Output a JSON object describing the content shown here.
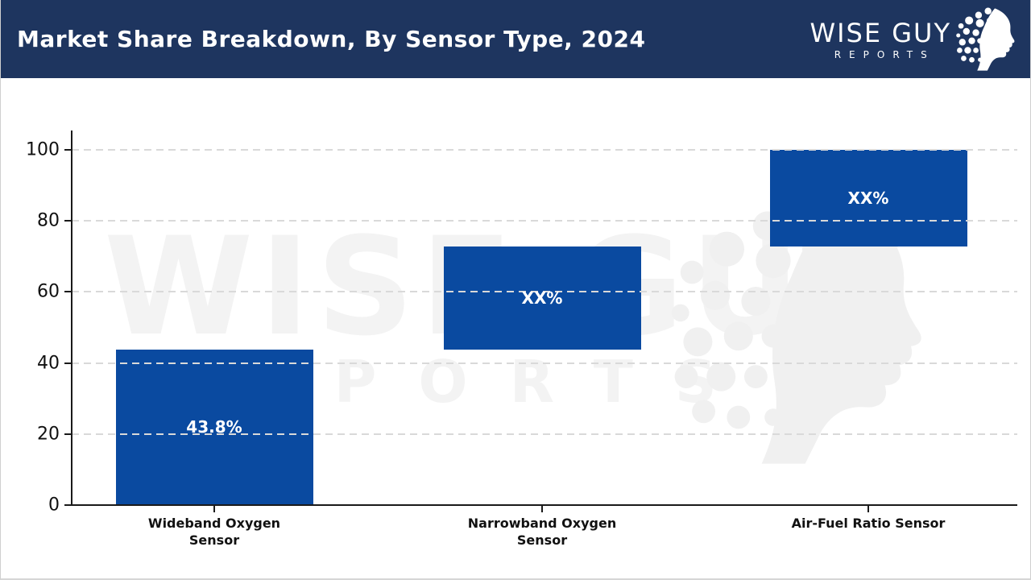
{
  "header": {
    "title": "Market Share Breakdown, By Sensor Type, 2024",
    "logo": {
      "line1": "WISE GUY",
      "line2": "REPORTS"
    }
  },
  "watermark": {
    "line1": "WISE GUY",
    "line2": "REPORTS"
  },
  "colors": {
    "header_bg": "#1e355f",
    "bar": "#0a4aa0",
    "grid": "#d9d9d9",
    "axis": "#1a1a1a",
    "watermark": "#f3f3f3",
    "bar_label": "#ffffff"
  },
  "chart_data": {
    "type": "bar",
    "subtype": "floating-stacked-percentage",
    "title": "Market Share Breakdown, By Sensor Type, 2024",
    "categories": [
      "Wideband Oxygen Sensor",
      "Narrowband Oxygen Sensor",
      "Air-Fuel Ratio Sensor"
    ],
    "segments": [
      {
        "category": "Wideband Oxygen Sensor",
        "start": 0,
        "end": 43.8,
        "label": "43.8%"
      },
      {
        "category": "Narrowband Oxygen Sensor",
        "start": 43.8,
        "end": 72.8,
        "label": "XX%"
      },
      {
        "category": "Air-Fuel Ratio Sensor",
        "start": 72.8,
        "end": 100,
        "label": "XX%"
      }
    ],
    "xlabel": "",
    "ylabel": "",
    "yticks": [
      0,
      20,
      40,
      60,
      80,
      100
    ],
    "ylim": [
      0,
      106
    ],
    "grid": "horizontal-dashed",
    "legend": "none"
  }
}
